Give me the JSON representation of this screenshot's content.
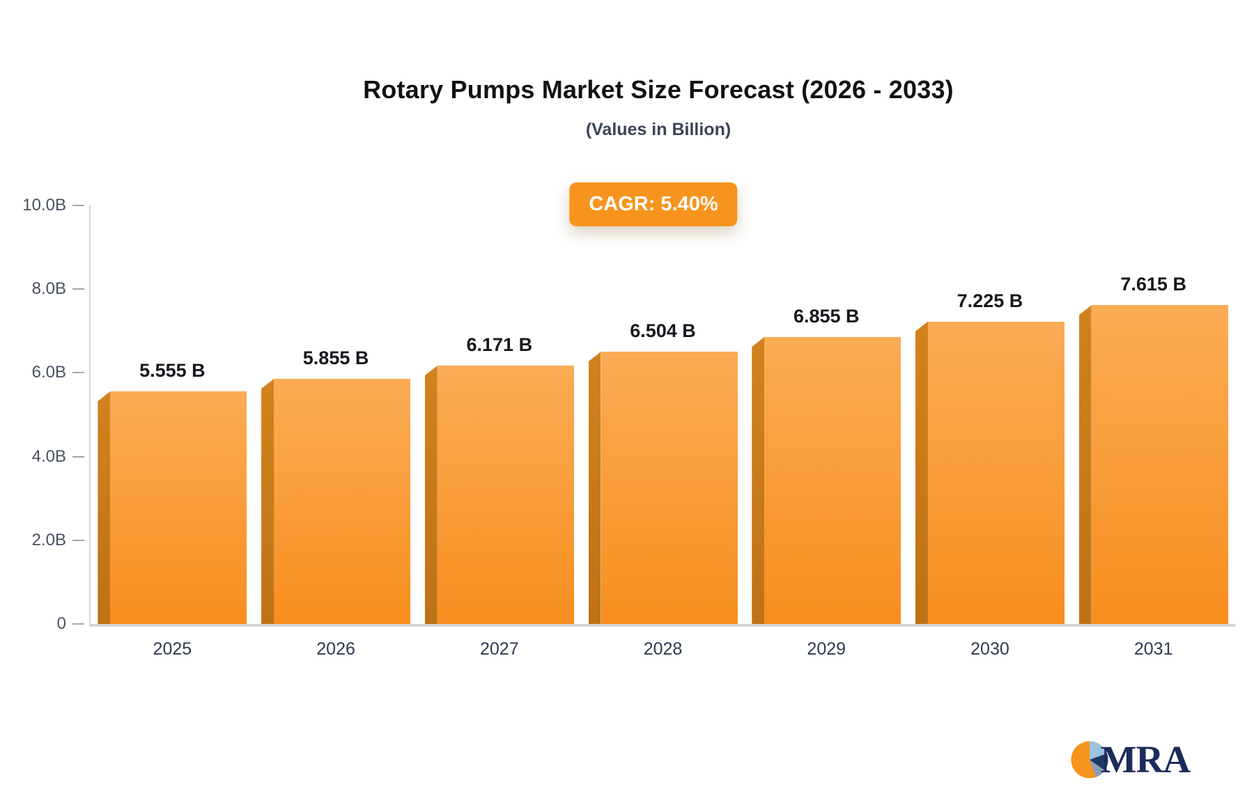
{
  "title": "Rotary Pumps Market Size Forecast (2026 - 2033)",
  "subtitle": "(Values in Billion)",
  "cagr_badge": "CAGR: 5.40%",
  "colors": {
    "badge_bg": "#F7941E",
    "bar_top": "#FBAC55",
    "bar_bottom": "#F78E1E",
    "bar_side": "#C8791B",
    "axis_line": "#D8DADE",
    "tick_text": "#4A5160",
    "year_text": "#2F3A4F",
    "value_text": "#16181D",
    "title_text": "#121212",
    "subtitle_text": "#3C4557",
    "logo_text": "#1B2B5B"
  },
  "chart_data": {
    "type": "bar",
    "title": "Rotary Pumps Market Size Forecast (2026 - 2033)",
    "subtitle": "(Values in Billion)",
    "annotation": "CAGR: 5.40%",
    "categories": [
      "2025",
      "2026",
      "2027",
      "2028",
      "2029",
      "2030",
      "2031"
    ],
    "values": [
      5.555,
      5.855,
      6.171,
      6.504,
      6.855,
      7.225,
      7.615
    ],
    "value_labels": [
      "5.555 B",
      "5.855 B",
      "6.171 B",
      "6.504 B",
      "6.855 B",
      "7.225 B",
      "7.615 B"
    ],
    "xlabel": "",
    "ylabel": "",
    "ylim": [
      0,
      10
    ],
    "yticks": [
      {
        "value": 10,
        "label": "10.0B"
      },
      {
        "value": 8,
        "label": "8.0B"
      },
      {
        "value": 6,
        "label": "6.0B"
      },
      {
        "value": 4,
        "label": "4.0B"
      },
      {
        "value": 2,
        "label": "2.0B"
      },
      {
        "value": 0,
        "label": "0"
      }
    ],
    "grid": false,
    "legend_position": "none"
  },
  "logo": {
    "text": "MRA"
  }
}
